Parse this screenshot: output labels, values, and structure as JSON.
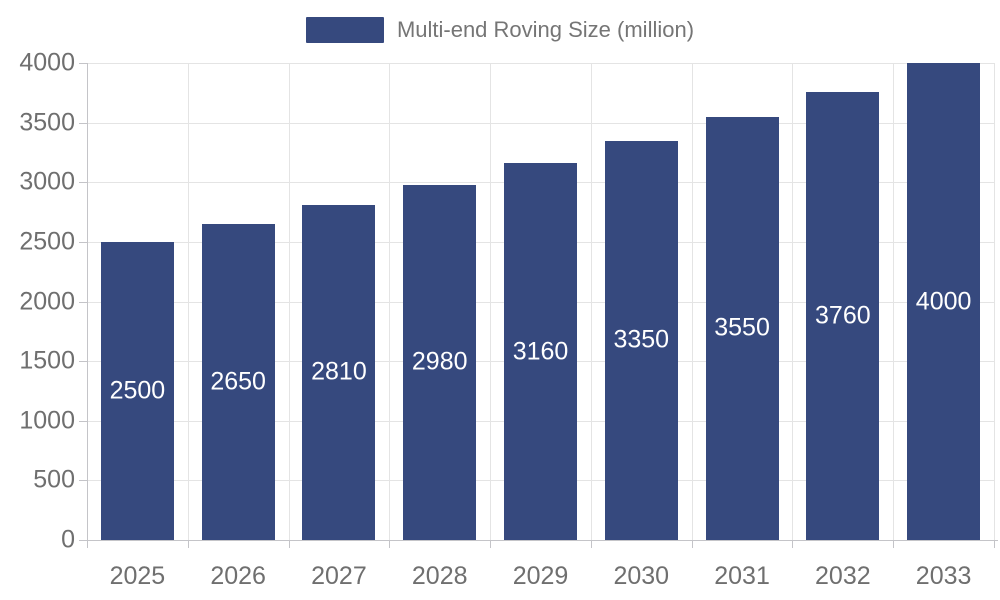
{
  "chart_data": {
    "type": "bar",
    "title": "Multi-end Roving Size (million)",
    "categories": [
      "2025",
      "2026",
      "2027",
      "2028",
      "2029",
      "2030",
      "2031",
      "2032",
      "2033"
    ],
    "values": [
      2500,
      2650,
      2810,
      2980,
      3160,
      3350,
      3550,
      3760,
      4000
    ],
    "bar_value_labels": [
      "2500",
      "2650",
      "2810",
      "2980",
      "3160",
      "3350",
      "3550",
      "3760",
      "4000"
    ],
    "xlabel": "",
    "ylabel": "",
    "ylim": [
      0,
      4000
    ],
    "ytick_step": 500,
    "ytick_labels": [
      "0",
      "500",
      "1000",
      "1500",
      "2000",
      "2500",
      "3000",
      "3500",
      "4000"
    ],
    "grid": "on",
    "legend_position": "top-center",
    "bar_label_position": "middle-inside",
    "colors": {
      "bar": "#36497E",
      "grid": "#E4E4E4",
      "axis": "#C4C4C8",
      "axis_text": "#6F6F6F",
      "legend_text": "#757575",
      "bar_label": "#FFFFFF",
      "background": "#FFFFFF"
    }
  }
}
